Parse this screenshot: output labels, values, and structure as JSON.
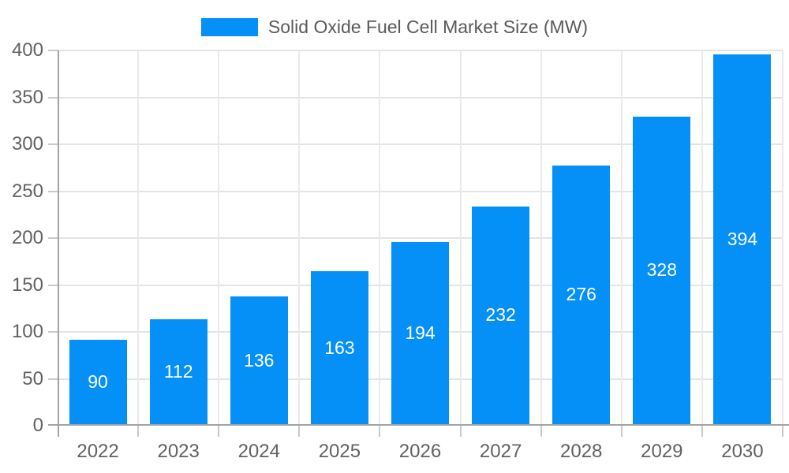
{
  "chart_data": {
    "type": "bar",
    "title": "Solid Oxide Fuel Cell Market Size (MW)",
    "categories": [
      "2022",
      "2023",
      "2024",
      "2025",
      "2026",
      "2027",
      "2028",
      "2029",
      "2030"
    ],
    "values": [
      90,
      112,
      136,
      163,
      194,
      232,
      276,
      328,
      394
    ],
    "xlabel": "",
    "ylabel": "",
    "ylim": [
      0,
      400
    ],
    "yticks": [
      0,
      50,
      100,
      150,
      200,
      250,
      300,
      350,
      400
    ],
    "grid": true,
    "legend_position": "top-center",
    "bar_labels_inside": true,
    "colors": {
      "bar_fill": "#0590f8",
      "bar_label_text": "#ffffff",
      "axis_line": "#a3a3a3",
      "tick_mark": "#c9c9c9",
      "gridline_h": "#e4e4e4",
      "gridline_v": "#eaeaea",
      "axis_text": "#616161",
      "legend_text": "#595959",
      "background": "#ffffff"
    }
  }
}
